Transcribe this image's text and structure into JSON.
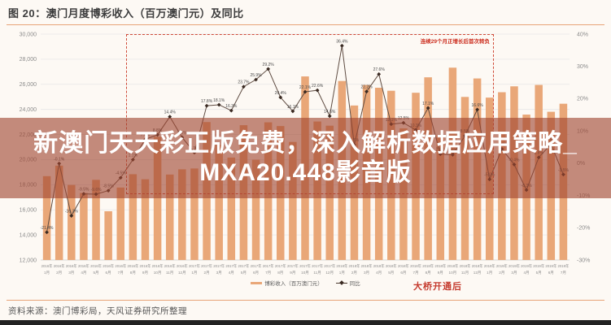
{
  "page": {
    "title": "图 20：澳门月度博彩收入（百万澳门元）及同比",
    "source": "资料来源：澳门博彩局，天风证券研究所整理"
  },
  "watermark": {
    "line1": "新澳门天天彩正版免费，深入解析数据应用策略_",
    "line2": "MXA20.448影音版"
  },
  "annotations": {
    "box_label": "连续29个月正增长后首次转负",
    "bridge_label": "大桥开通后"
  },
  "colors": {
    "bar": "#e9a778",
    "line": "#5f4c42",
    "marker": "#3a2a22",
    "grid": "#e7e7e7",
    "axis_line": "#cfcfcf",
    "axis_text": "#8c8c8c",
    "point_label": "#4a4a4a",
    "accent_red": "#c53b2e",
    "separator_orange": "#e7a377"
  },
  "chart_data": {
    "type": "bar+line",
    "title": "澳门月度博彩收入（百万澳门元）及同比",
    "grid": true,
    "legend_position": "bottom",
    "categories": [
      "2016年1月",
      "2016年2月",
      "2016年3月",
      "2016年4月",
      "2016年5月",
      "2016年6月",
      "2016年7月",
      "2016年8月",
      "2016年9月",
      "2016年10月",
      "2016年11月",
      "2016年12月",
      "2017年1月",
      "2017年2月",
      "2017年3月",
      "2017年4月",
      "2017年5月",
      "2017年6月",
      "2017年7月",
      "2017年8月",
      "2017年9月",
      "2017年10月",
      "2017年11月",
      "2017年12月",
      "2018年1月",
      "2018年2月",
      "2018年3月",
      "2018年4月",
      "2018年5月",
      "2018年6月",
      "2018年7月",
      "2018年8月",
      "2018年9月",
      "2018年10月",
      "2018年11月",
      "2018年12月",
      "2019年1月",
      "2019年2月",
      "2019年3月",
      "2019年4月",
      "2019年5月",
      "2019年6月",
      "2019年7月"
    ],
    "series": [
      {
        "name": "博彩收入（百万澳门元）",
        "type": "bar",
        "axis": "left",
        "values": [
          18683,
          19520,
          17980,
          17340,
          18389,
          15885,
          17774,
          18837,
          18434,
          21818,
          18811,
          19229,
          19294,
          22992,
          21183,
          20164,
          22743,
          19992,
          22972,
          22676,
          21408,
          26630,
          23038,
          22703,
          26265,
          24312,
          25952,
          25727,
          25488,
          22490,
          25327,
          26559,
          21952,
          27328,
          24995,
          26468,
          24942,
          25370,
          25840,
          23588,
          25952,
          23812,
          24453
        ]
      },
      {
        "name": "同比",
        "type": "line",
        "axis": "right",
        "unit": "%",
        "values": [
          -21.4,
          -0.1,
          -16.3,
          -9.5,
          -9.6,
          -8.5,
          -4.5,
          1.1,
          7.4,
          8.8,
          14.4,
          8.0,
          3.3,
          17.8,
          18.1,
          16.3,
          23.7,
          25.9,
          29.2,
          20.4,
          16.1,
          22.1,
          22.6,
          14.6,
          36.4,
          5.7,
          22.2,
          27.6,
          12.1,
          12.5,
          10.3,
          17.1,
          2.8,
          2.6,
          8.5,
          16.6,
          -5.0,
          4.4,
          -0.4,
          -8.3,
          1.8,
          5.9,
          -3.5
        ]
      }
    ],
    "left_axis": {
      "min": 12000,
      "max": 30000,
      "step": 2000,
      "ticks": [
        12000,
        14000,
        16000,
        18000,
        20000,
        22000,
        24000,
        26000,
        28000,
        30000
      ]
    },
    "right_axis": {
      "min": -30,
      "max": 40,
      "step": 10,
      "unit": "%",
      "ticks": [
        -30,
        -20,
        -10,
        0,
        10,
        20,
        30,
        40
      ]
    }
  }
}
